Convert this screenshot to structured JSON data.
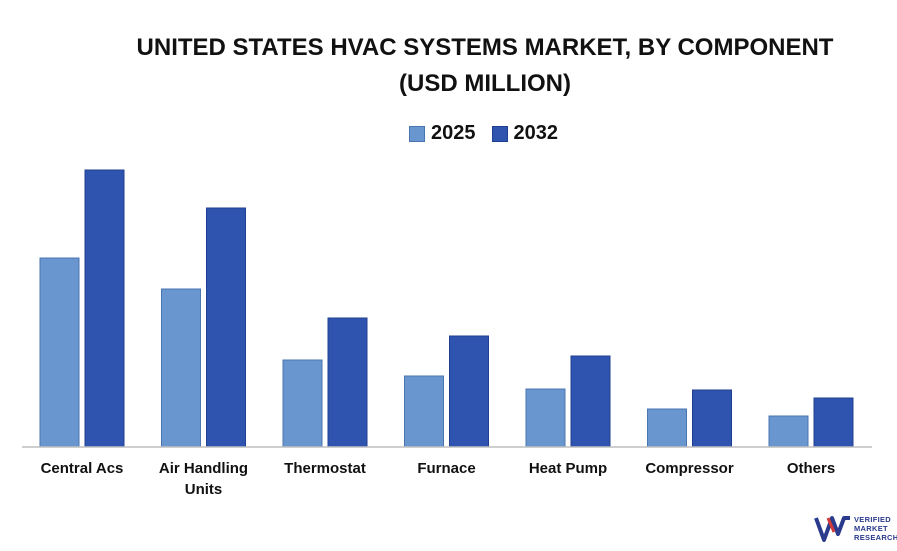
{
  "chart_data": {
    "type": "bar",
    "title_line1": "UNITED STATES HVAC SYSTEMS MARKET, BY COMPONENT",
    "title_line2": "(USD MILLION)",
    "categories": [
      "Central Acs",
      "Air Handling Units",
      "Thermostat",
      "Furnace",
      "Heat Pump",
      "Compressor",
      "Others"
    ],
    "series": [
      {
        "name": "2025",
        "color": "#6a96d0",
        "values": [
          189,
          158,
          87,
          71,
          58,
          38,
          31
        ]
      },
      {
        "name": "2032",
        "color": "#2f54b0",
        "values": [
          277,
          239,
          129,
          111,
          91,
          57,
          49
        ]
      }
    ],
    "ylim": [
      0,
      300
    ],
    "grid": false,
    "legend_position": "top-center"
  },
  "logo": {
    "text_lines": [
      "VERIFIED",
      "MARKET",
      "RESEARCH"
    ],
    "color": "#2a3a8c"
  }
}
